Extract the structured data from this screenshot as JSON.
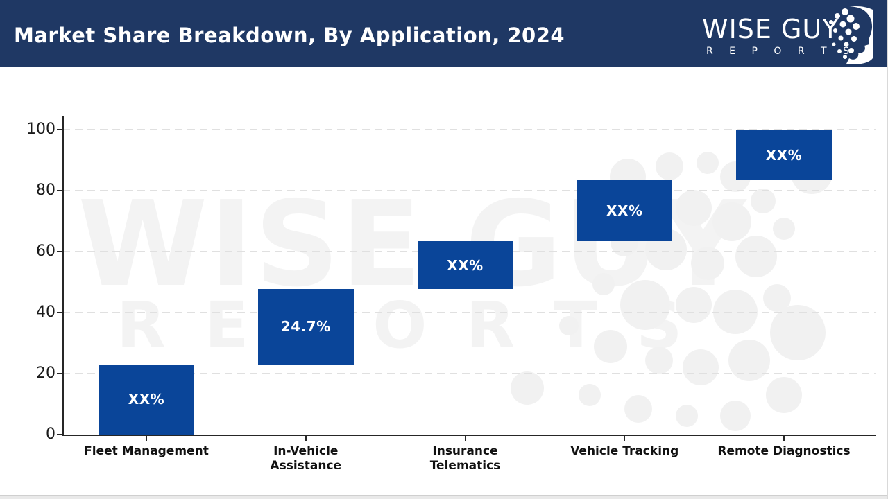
{
  "header": {
    "title": "Market Share Breakdown, By Application, 2024",
    "bg_color": "#1f3864",
    "logo": {
      "line1": "WISE GUY",
      "line2": "R E P O R T S"
    }
  },
  "watermark": {
    "line1": "WISE GUY",
    "line2": "R E P O R T S"
  },
  "chart_data": {
    "type": "bar",
    "subtype": "waterfall",
    "title": "Market Share Breakdown, By Application, 2024",
    "categories": [
      "Fleet Management",
      "In-Vehicle\nAssistance",
      "Insurance\nTelematics",
      "Vehicle Tracking",
      "Remote Diagnostics"
    ],
    "segments": [
      {
        "category": "Fleet Management",
        "start": 0,
        "end": 23,
        "value": 23,
        "label": "XX%"
      },
      {
        "category": "In-Vehicle Assistance",
        "start": 23,
        "end": 47.7,
        "value": 24.7,
        "label": "24.7%"
      },
      {
        "category": "Insurance Telematics",
        "start": 47.7,
        "end": 63.4,
        "value": 15.7,
        "label": "XX%"
      },
      {
        "category": "Vehicle Tracking",
        "start": 63.4,
        "end": 83.3,
        "value": 19.9,
        "label": "XX%"
      },
      {
        "category": "Remote Diagnostics",
        "start": 83.3,
        "end": 100,
        "value": 16.7,
        "label": "XX%"
      }
    ],
    "yticks": [
      0,
      20,
      40,
      60,
      80,
      100
    ],
    "ylim": [
      0,
      105
    ],
    "xlabel": "",
    "ylabel": "",
    "grid": "horizontal-dashed",
    "legend": "none",
    "bar_color": "#0a4599",
    "bar_label_color": "#ffffff"
  }
}
